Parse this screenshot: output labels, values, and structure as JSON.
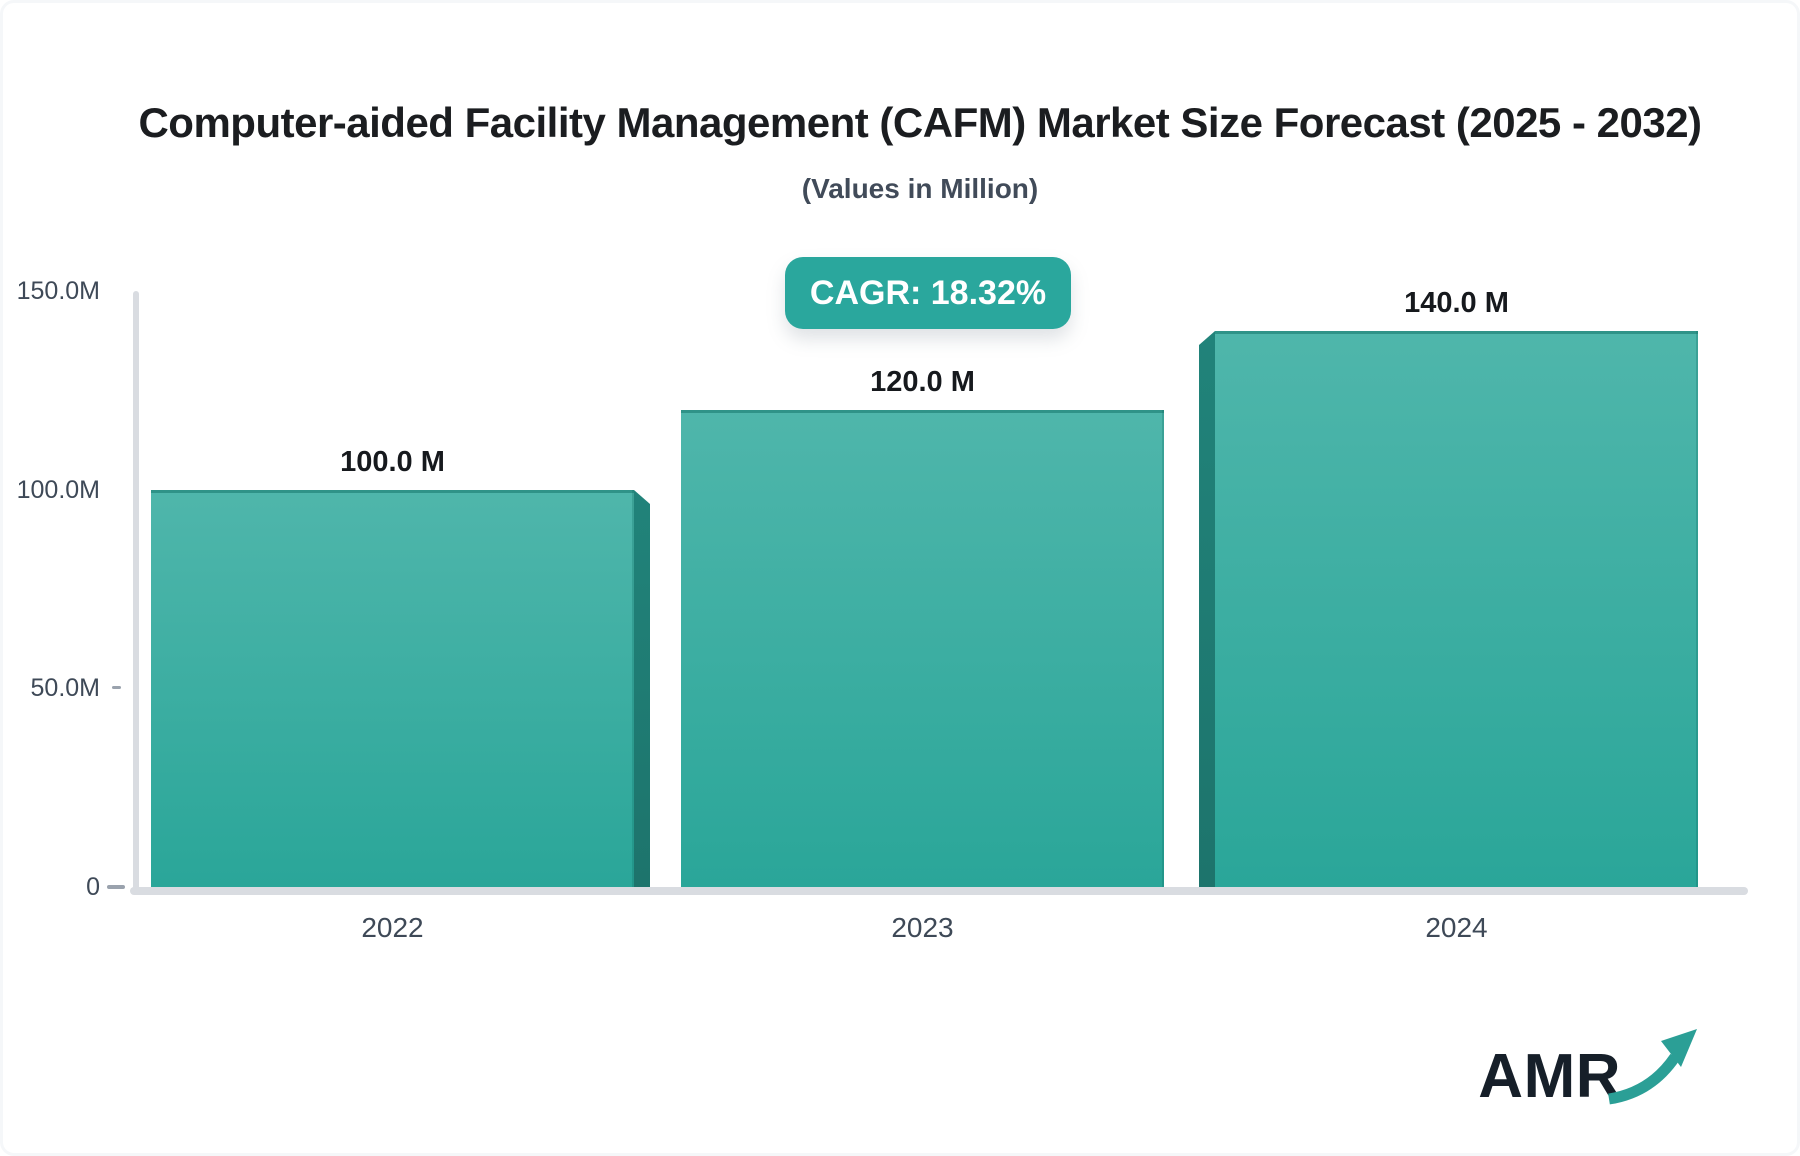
{
  "header": {
    "title": "Computer-aided Facility Management (CAFM) Market Size Forecast (2025 - 2032)",
    "subtitle": "(Values in Million)",
    "cagr_label": "CAGR: 18.32%"
  },
  "chart_data": {
    "type": "bar",
    "title": "Computer-aided Facility Management (CAFM) Market Size Forecast (2025 - 2032)",
    "subtitle": "(Values in Million)",
    "unit": "Million",
    "cagr_percent": 18.32,
    "categories": [
      "2022",
      "2023",
      "2024"
    ],
    "values": [
      100.0,
      120.0,
      140.0
    ],
    "bar_labels": [
      "100.0 M",
      "120.0 M",
      "140.0 M"
    ],
    "y_ticks": [
      "0",
      "50.0M",
      "100.0M",
      "150.0M"
    ],
    "y_tick_values": [
      0,
      50,
      100,
      150
    ],
    "ylim": [
      0,
      150
    ],
    "xlabel": "",
    "ylabel": "",
    "grid": false,
    "legend": false,
    "style": "3d-gradient-teal-bars"
  },
  "colors": {
    "bar_gradient_top": "#4fb6ab",
    "bar_gradient_bottom": "#2aa699",
    "bar_side_face": "#1e7b72",
    "badge_background": "#2aa79d",
    "badge_text": "#ffffff",
    "axis_line": "#d9dce1",
    "tick_text": "#3e4957",
    "title_text": "#1b1d20",
    "logo_text": "#161f29",
    "logo_arrow": "#2b9f96"
  },
  "logo": {
    "text": "AMR"
  }
}
